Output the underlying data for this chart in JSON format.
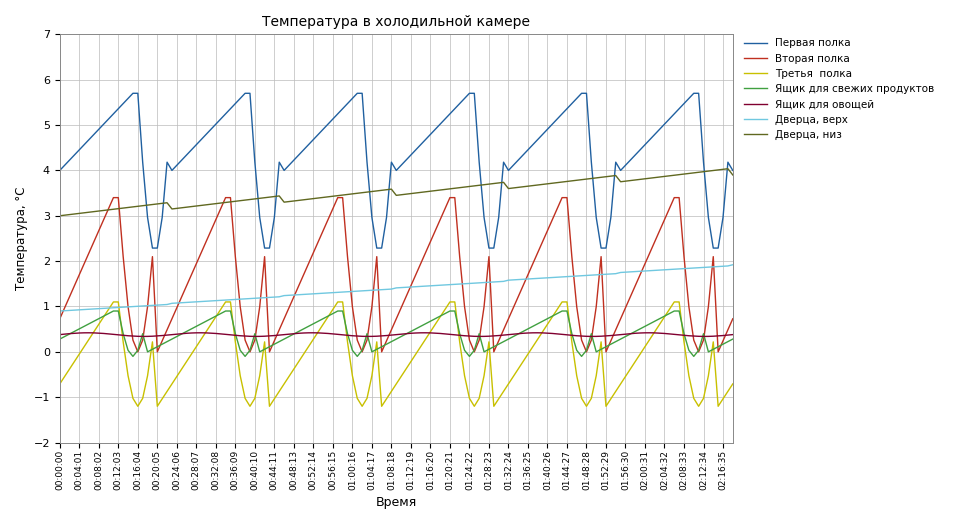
{
  "title": "Температура в холодильной камере",
  "xlabel": "Время",
  "ylabel": "Температура, °C",
  "ylim": [
    -2,
    7
  ],
  "series_labels": [
    "Первая полка",
    "Вторая полка",
    "Третья  полка",
    "Ящик для свежих продуктов",
    "Ящик для овощей",
    "Дверца, верх",
    "Дверца, низ"
  ],
  "series_colors": [
    "#2060a0",
    "#c03020",
    "#c8c000",
    "#40a040",
    "#800030",
    "#70c8e0",
    "#606820"
  ],
  "num_points": 139,
  "total_seconds": 8316,
  "background_color": "#ffffff",
  "grid_color": "#bbbbbb",
  "tick_every_n": 4
}
